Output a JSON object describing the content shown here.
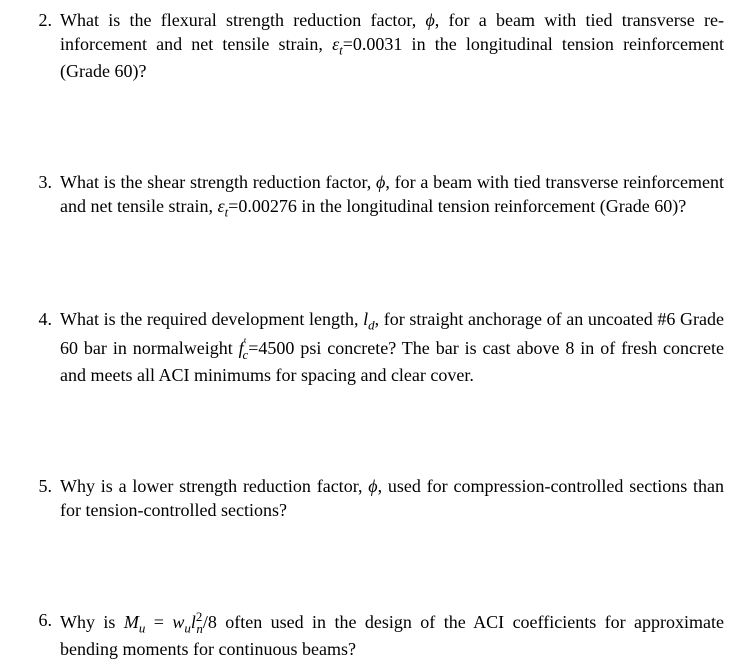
{
  "questions": [
    {
      "num": "2.",
      "text_parts": {
        "p1": "What is the flexural strength reduction factor, ",
        "phi": "ϕ",
        "p2": ", for a beam with tied transverse re­inforcement and net tensile strain, ",
        "eps": "ε",
        "epssub": "t",
        "p3": "=0.0031 in the longitudinal tension reinforcement (Grade 60)?"
      }
    },
    {
      "num": "3.",
      "text_parts": {
        "p1": "What is the shear strength reduction factor, ",
        "phi": "ϕ",
        "p2": ", for a beam with tied transverse rein­forcement and net tensile strain, ",
        "eps": "ε",
        "epssub": "t",
        "p3": "=0.00276 in the longitudinal tension reinforcement (Grade 60)?"
      }
    },
    {
      "num": "4.",
      "text_parts": {
        "p1": "What is the required development length, ",
        "l": "l",
        "lsub": "d",
        "p2": ", for straight anchorage of an uncoated #6 Grade 60 bar in normalweight ",
        "f": "f",
        "fsup": "′",
        "fsub": "c",
        "p3": "=4500 psi concrete? The bar is cast above 8 in of fresh concrete and meets all ACI minimums for spacing and clear cover."
      }
    },
    {
      "num": "5.",
      "text_parts": {
        "p1": "Why is a lower strength reduction factor, ",
        "phi": "ϕ",
        "p2": ", used for compression-controlled sections than for tension-controlled sections?"
      }
    },
    {
      "num": "6.",
      "text_parts": {
        "p1": "Why is ",
        "Mu": "M",
        "Musub": "u",
        "eq": " = ",
        "wu": "w",
        "wusub": "u",
        "ln": "l",
        "lnsup": "2",
        "lnsub": "n",
        "p2": "/8 often used in the design of the ACI coefficients for approximate bending moments for continuous beams?"
      }
    }
  ],
  "style": {
    "font_size_pt": 14,
    "text_color": "#000000",
    "bg_color": "#ffffff"
  }
}
